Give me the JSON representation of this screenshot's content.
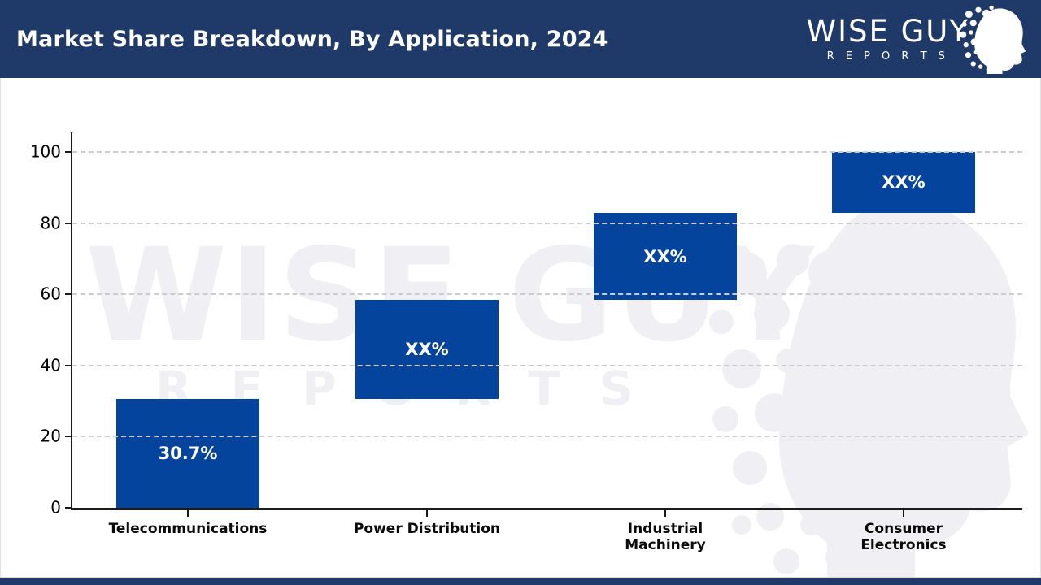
{
  "header": {
    "title": "Market Share Breakdown, By Application, 2024",
    "logo": {
      "main": "WISE GUY",
      "sub": "R E P O R T S"
    }
  },
  "watermark": {
    "main": "WISE GUY",
    "sub": "REPORTS"
  },
  "colors": {
    "header_navy": "#1f3a68",
    "bar_blue": "#05449c",
    "gridline_gray": "#cdcdcd",
    "watermark_gray": "#f0f0f4",
    "axis_black": "#1a1a1a",
    "bar_label_white": "#ffffff"
  },
  "chart_data": {
    "type": "bar",
    "subtype": "waterfall-floating-bars",
    "title": "Market Share Breakdown, By Application, 2024",
    "unit": "percent",
    "categories": [
      "Telecommunications",
      "Power Distribution",
      "Industrial Machinery",
      "Consumer Electronics"
    ],
    "segments": [
      {
        "category": "Telecommunications",
        "lines": [
          "Telecommunications"
        ],
        "start": 0,
        "end": 30.7,
        "label": "30.7%"
      },
      {
        "category": "Power Distribution",
        "lines": [
          "Power Distribution"
        ],
        "start": 30.7,
        "end": 58.4,
        "label": "XX%"
      },
      {
        "category": "Industrial Machinery",
        "lines": [
          "Industrial",
          "Machinery"
        ],
        "start": 58.4,
        "end": 82.9,
        "label": "XX%"
      },
      {
        "category": "Consumer Electronics",
        "lines": [
          "Consumer",
          "Electronics"
        ],
        "start": 82.9,
        "end": 100,
        "label": "XX%"
      }
    ],
    "yticks": [
      0,
      20,
      40,
      60,
      80,
      100
    ],
    "ylim": [
      0,
      105
    ],
    "xlabel": "",
    "ylabel": "",
    "grid": "horizontal-dashed",
    "gridline_above_bars": true,
    "legend": null
  }
}
